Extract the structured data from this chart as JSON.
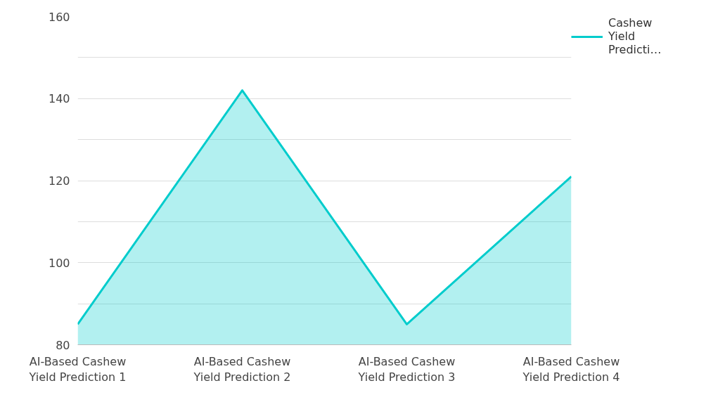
{
  "chart_data": {
    "type": "area",
    "categories": [
      "AI-Based Cashew Yield Prediction 1",
      "AI-Based Cashew Yield Prediction 2",
      "AI-Based Cashew Yield Prediction 3",
      "AI-Based Cashew Yield Prediction 4"
    ],
    "series": [
      {
        "name": "Cashew Yield Predicti…",
        "color": "#00cccc",
        "values": [
          85,
          142,
          85,
          121
        ]
      }
    ],
    "ylim": [
      80,
      160
    ],
    "yticks": [
      80,
      {
        "value": 90,
        "label": null
      },
      100,
      {
        "value": 110,
        "label": null
      },
      120,
      {
        "value": 130,
        "label": null
      },
      140,
      {
        "value": 150,
        "label": null
      },
      160
    ],
    "grid": "y",
    "legend": "top right",
    "marker": "none",
    "line_style": "solid"
  }
}
